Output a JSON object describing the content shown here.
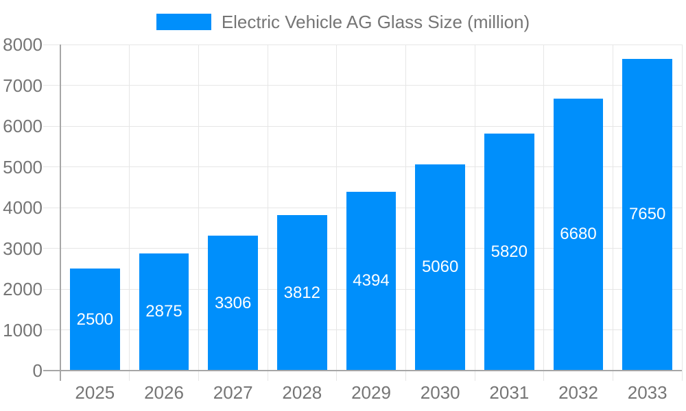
{
  "chart_data": {
    "type": "bar",
    "title": "Electric Vehicle AG Glass Size (million)",
    "legend": {
      "label": "Electric Vehicle AG Glass Size (million)",
      "position": "top"
    },
    "categories": [
      "2025",
      "2026",
      "2027",
      "2028",
      "2029",
      "2030",
      "2031",
      "2032",
      "2033"
    ],
    "values": [
      2500,
      2875,
      3306,
      3812,
      4394,
      5060,
      5820,
      6680,
      7650
    ],
    "xlabel": "",
    "ylabel": "",
    "ylim": [
      0,
      8000
    ],
    "ytick_step": 1000,
    "grid": true,
    "legend_position": "top-center",
    "colors": {
      "bar": "#008FFB",
      "value_label": "#ffffff",
      "axis_text": "#757575",
      "gridline": "#e6e6e6",
      "axis_line": "#a6a6a6",
      "background": "#ffffff"
    }
  }
}
